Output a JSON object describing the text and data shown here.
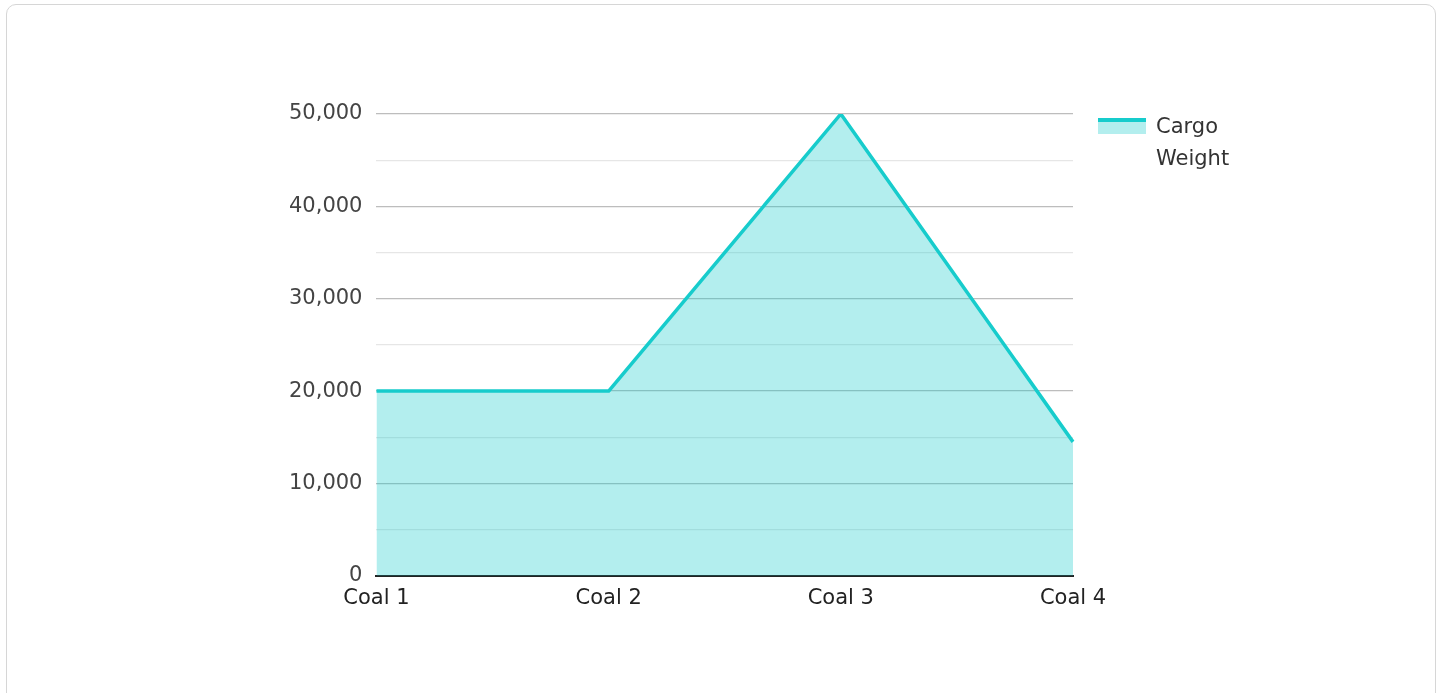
{
  "chart_data": {
    "type": "area",
    "categories": [
      "Coal 1",
      "Coal 2",
      "Coal 3",
      "Coal 4"
    ],
    "series": [
      {
        "name": "Cargo Weight",
        "color": "#17cccc",
        "values": [
          20000,
          20000,
          50000,
          14500
        ]
      }
    ],
    "ylim": [
      0,
      50000
    ],
    "yticks": [
      0,
      {
        "value": 5000,
        "label": null
      },
      {
        "value": 10000,
        "label": "10,000"
      },
      {
        "value": 15000,
        "label": null
      },
      {
        "value": 20000,
        "label": "20,000"
      },
      {
        "value": 25000,
        "label": null
      },
      {
        "value": 30000,
        "label": "30,000"
      },
      {
        "value": 35000,
        "label": null
      },
      {
        "value": 40000,
        "label": "40,000"
      },
      {
        "value": 45000,
        "label": null
      },
      {
        "value": 50000,
        "label": "50,000"
      }
    ],
    "grid": "y",
    "legend": "top right"
  }
}
